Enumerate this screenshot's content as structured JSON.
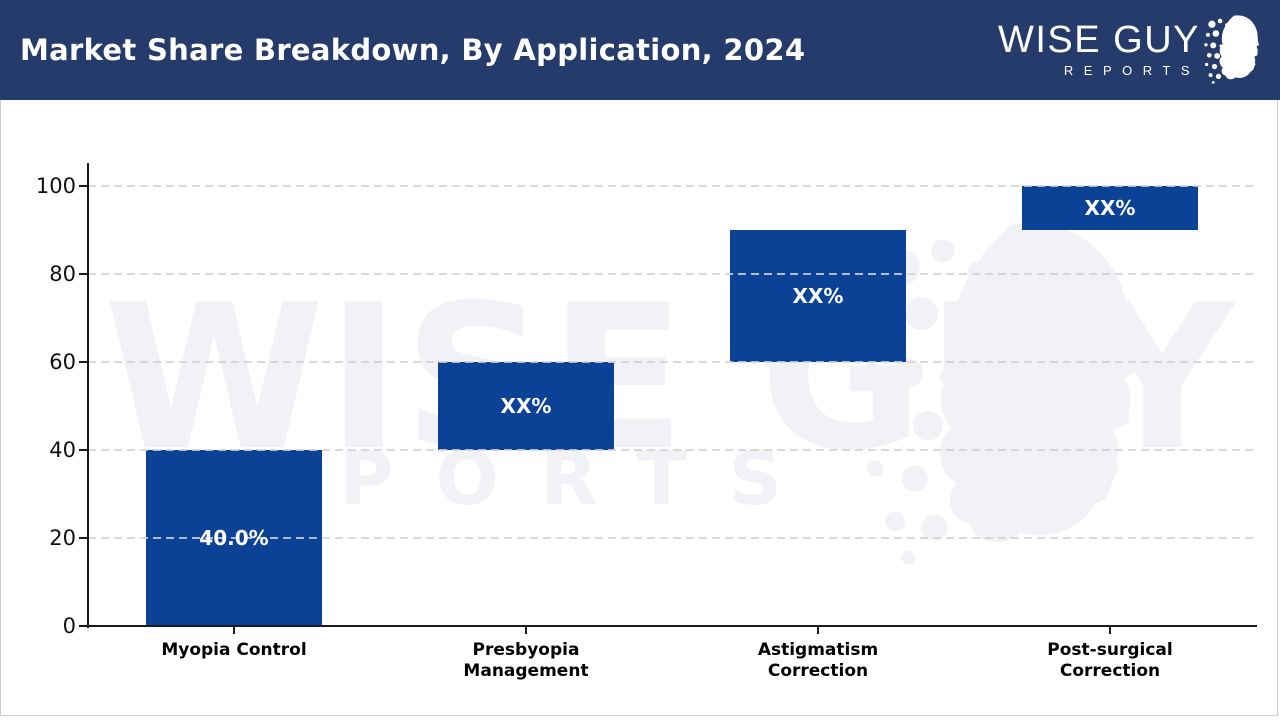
{
  "header": {
    "title": "Market Share Breakdown, By Application, 2024",
    "logo": {
      "line1": "WISE GUY",
      "line2": "REPORTS"
    }
  },
  "watermark": {
    "line1": "WISE GUY",
    "line2": "REPORTS"
  },
  "colors": {
    "header_bg": "#243B6B",
    "bar": "#0B4296",
    "grid": "#D2D2D2",
    "axis": "#1A1A1A",
    "watermark": "#F1F2F5"
  },
  "chart_data": {
    "type": "bar",
    "variant": "waterfall",
    "title": "Market Share Breakdown, By Application, 2024",
    "categories": [
      {
        "name": "Myopia Control",
        "lines": [
          "Myopia Control"
        ]
      },
      {
        "name": "Presbyopia Management",
        "lines": [
          "Presbyopia",
          "Management"
        ]
      },
      {
        "name": "Astigmatism Correction",
        "lines": [
          "Astigmatism",
          "Correction"
        ]
      },
      {
        "name": "Post-surgical Correction",
        "lines": [
          "Post-surgical",
          "Correction"
        ]
      }
    ],
    "segments": [
      {
        "category": "Myopia Control",
        "start": 0,
        "end": 40,
        "label": "40.0%"
      },
      {
        "category": "Presbyopia Management",
        "start": 40,
        "end": 60,
        "label": "XX%"
      },
      {
        "category": "Astigmatism Correction",
        "start": 60,
        "end": 90,
        "label": "XX%"
      },
      {
        "category": "Post-surgical Correction",
        "start": 90,
        "end": 100,
        "label": "XX%"
      }
    ],
    "ylim": [
      0,
      100
    ],
    "yticks": [
      0,
      20,
      40,
      60,
      80,
      100
    ],
    "grid": "horizontal-dashed",
    "legend": "none",
    "bar_color": "#0B4296"
  }
}
